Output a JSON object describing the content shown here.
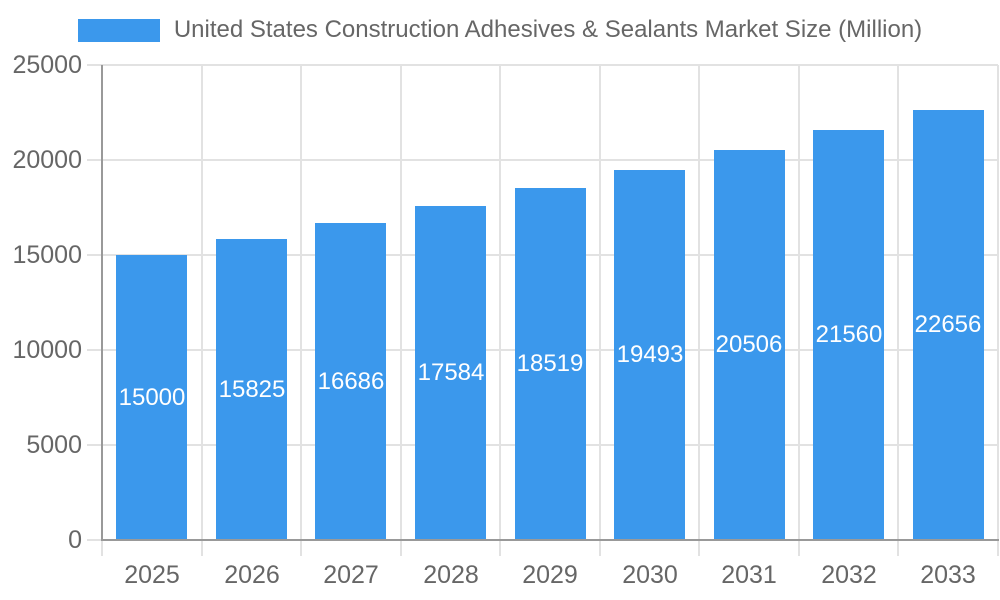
{
  "chart_data": {
    "type": "bar",
    "title": "United States Construction Adhesives & Sealants Market Size (Million)",
    "legend": {
      "position": "top",
      "label": "United States Construction Adhesives & Sealants Market Size (Million)"
    },
    "categories": [
      "2025",
      "2026",
      "2027",
      "2028",
      "2029",
      "2030",
      "2031",
      "2032",
      "2033"
    ],
    "values": [
      15000,
      15825,
      16686,
      17584,
      18519,
      19493,
      20506,
      21560,
      22656
    ],
    "xlabel": "",
    "ylabel": "",
    "ylim": [
      0,
      25000
    ],
    "yticks": [
      0,
      5000,
      10000,
      15000,
      20000,
      25000
    ],
    "grid": true,
    "colors": {
      "bar": "#3B98EC",
      "grid": "#E2E2E2",
      "axis": "#999999",
      "tick_text": "#666666",
      "bar_label_text": "#FFFFFF",
      "background": "#FFFFFF"
    }
  }
}
